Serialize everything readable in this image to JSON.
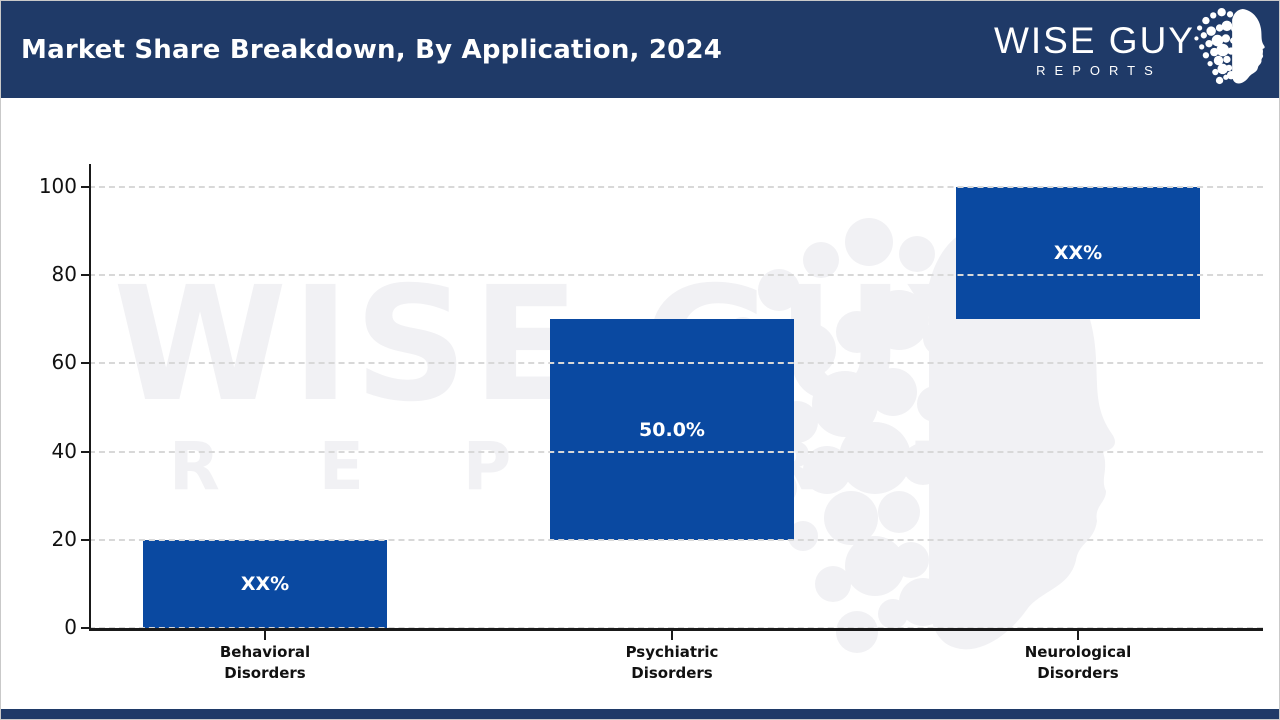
{
  "header": {
    "title": "Market Share Breakdown, By Application, 2024",
    "logo": {
      "line1": "WISE GUY",
      "line2": "REPORTS"
    }
  },
  "watermark": {
    "line1": "WISE GUY",
    "line2": "REPORTS"
  },
  "colors": {
    "header_bg": "#1f3a68",
    "footer_bg": "#1f3a68",
    "bar_fill": "#0a49a1",
    "bar_label_text": "#ffffff",
    "grid_line": "#d8d8d8",
    "axis_line": "#1a1a1a",
    "watermark": "#f1f1f4",
    "page_bg": "#ffffff"
  },
  "chart_data": {
    "type": "bar",
    "subtype": "floating-segment-waterfall",
    "title": "Market Share Breakdown, By Application, 2024",
    "xlabel": "",
    "ylabel": "",
    "categories": [
      "Behavioral\nDisorders",
      "Psychiatric\nDisorders",
      "Neurological\nDisorders"
    ],
    "bars": [
      {
        "category": "Behavioral Disorders",
        "start": 0,
        "end": 20,
        "label": "XX%"
      },
      {
        "category": "Psychiatric Disorders",
        "start": 20,
        "end": 70,
        "label": "50.0%"
      },
      {
        "category": "Neurological Disorders",
        "start": 70,
        "end": 100,
        "label": "XX%"
      }
    ],
    "ylim": [
      0,
      100
    ],
    "yticks": [
      0,
      20,
      40,
      60,
      80,
      100
    ],
    "grid": "horizontal-dashed",
    "legend": "none"
  }
}
